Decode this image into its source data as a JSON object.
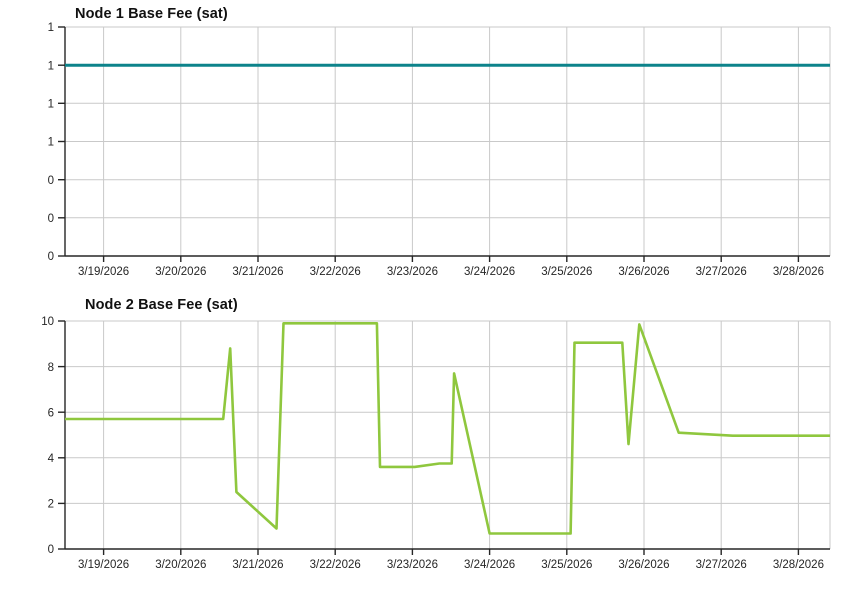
{
  "style": {
    "background": "#ffffff",
    "grid_color": "#c9c9c9",
    "axis_color": "#262626",
    "label_color": "#262626",
    "title_color": "#111111"
  },
  "x_axis": {
    "tick_labels": [
      "3/19/2026",
      "3/20/2026",
      "3/21/2026",
      "3/22/2026",
      "3/23/2026",
      "3/24/2026",
      "3/25/2026",
      "3/26/2026",
      "3/27/2026",
      "3/28/2026"
    ],
    "range_days": [
      -0.5,
      9.41
    ],
    "note_x_units": "days after 3/19/2026 tick"
  },
  "chart_data": [
    {
      "type": "line",
      "title": "Node 1 Base Fee (sat)",
      "line_color": "#0d838b",
      "line_width": 3,
      "ylim": [
        0,
        1.2
      ],
      "y_tick_values": [
        0,
        0.2,
        0.4,
        0.6,
        0.8,
        1.0,
        1.2
      ],
      "y_tick_labels_bottom_to_top": [
        "0",
        "0",
        "0",
        "1",
        "1",
        "1",
        "1"
      ],
      "grid": true,
      "legend": "none",
      "series": [
        {
          "name": "Node 1 Base Fee",
          "constant_value_sat": 1,
          "points": [
            [
              -0.5,
              1
            ],
            [
              9.41,
              1
            ]
          ]
        }
      ]
    },
    {
      "type": "line",
      "title": "Node 2 Base Fee (sat)",
      "line_color": "#8fc73e",
      "line_width": 2.6,
      "ylim": [
        0,
        10
      ],
      "y_tick_values": [
        0,
        2,
        4,
        6,
        8,
        10
      ],
      "y_tick_labels_bottom_to_top": [
        "0",
        "2",
        "4",
        "6",
        "8",
        "10"
      ],
      "grid": true,
      "legend": "none",
      "series": [
        {
          "name": "Node 2 Base Fee",
          "points": [
            [
              -0.5,
              5.7
            ],
            [
              1.55,
              5.7
            ],
            [
              1.64,
              8.8
            ],
            [
              1.72,
              2.5
            ],
            [
              2.24,
              0.9
            ],
            [
              2.33,
              9.9
            ],
            [
              3.54,
              9.9
            ],
            [
              3.58,
              3.6
            ],
            [
              4.03,
              3.6
            ],
            [
              4.35,
              3.75
            ],
            [
              4.51,
              3.75
            ],
            [
              4.54,
              7.7
            ],
            [
              5.0,
              0.68
            ],
            [
              6.05,
              0.68
            ],
            [
              6.1,
              9.05
            ],
            [
              6.72,
              9.05
            ],
            [
              6.8,
              4.6
            ],
            [
              6.94,
              9.85
            ],
            [
              7.45,
              5.1
            ],
            [
              8.15,
              4.97
            ],
            [
              9.41,
              4.97
            ]
          ]
        }
      ]
    }
  ]
}
